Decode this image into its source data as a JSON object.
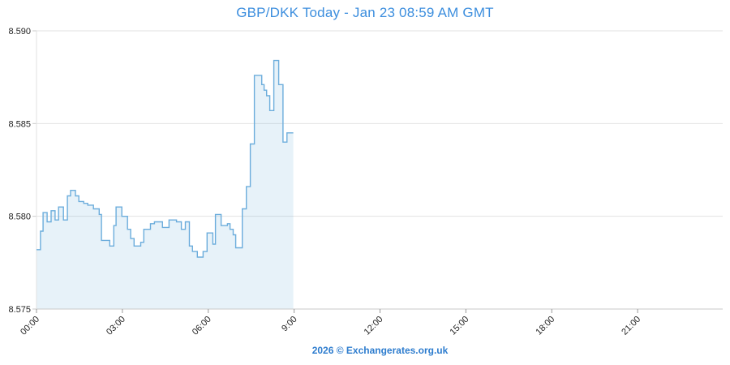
{
  "header": {
    "title": "GBP/DKK Today - Jan 23 08:59 AM GMT"
  },
  "footer": {
    "text": "2026 © Exchangerates.org.uk"
  },
  "colors": {
    "title": "#3c8ede",
    "footer": "#2d7cce",
    "line": "#6caddc",
    "fill": "rgba(108,173,220,0.16)",
    "grid": "#e2e2e2",
    "axis": "#c9c9c9",
    "tick": "#999999",
    "axis_text": "#222222"
  },
  "chart_data": {
    "type": "area",
    "subtype": "step-after",
    "title": "GBP/DKK Today - Jan 23 08:59 AM GMT",
    "xlabel": "",
    "ylabel": "",
    "x_unit": "hours",
    "xlim": [
      0,
      24
    ],
    "ylim": [
      8.575,
      8.59
    ],
    "grid": "horizontal-only",
    "legend": "none",
    "y_ticks": [
      {
        "v": 8.575,
        "label": "8.575"
      },
      {
        "v": 8.58,
        "label": "8.580"
      },
      {
        "v": 8.585,
        "label": "8.585"
      },
      {
        "v": 8.59,
        "label": "8.590"
      }
    ],
    "x_ticks": [
      {
        "h": 0,
        "label": "00:00"
      },
      {
        "h": 3,
        "label": "03:00"
      },
      {
        "h": 6,
        "label": "06:00"
      },
      {
        "h": 9,
        "label": "9:00"
      },
      {
        "h": 12,
        "label": "12:00"
      },
      {
        "h": 15,
        "label": "15:00"
      },
      {
        "h": 18,
        "label": "18:00"
      },
      {
        "h": 21,
        "label": "21:00"
      }
    ],
    "series": [
      {
        "name": "GBP/DKK",
        "step": true,
        "end_t": 8.97,
        "points": [
          [
            0.0,
            8.5782
          ],
          [
            0.14,
            8.5792
          ],
          [
            0.23,
            8.5802
          ],
          [
            0.37,
            8.5797
          ],
          [
            0.51,
            8.5803
          ],
          [
            0.65,
            8.5798
          ],
          [
            0.77,
            8.5805
          ],
          [
            0.94,
            8.5798
          ],
          [
            1.08,
            8.5811
          ],
          [
            1.19,
            8.5814
          ],
          [
            1.36,
            8.5811
          ],
          [
            1.48,
            8.5808
          ],
          [
            1.65,
            8.5807
          ],
          [
            1.79,
            8.5806
          ],
          [
            1.99,
            8.5804
          ],
          [
            2.19,
            8.5801
          ],
          [
            2.27,
            8.5787
          ],
          [
            2.56,
            8.5784
          ],
          [
            2.7,
            8.5795
          ],
          [
            2.78,
            8.5805
          ],
          [
            2.98,
            8.58
          ],
          [
            3.18,
            8.5793
          ],
          [
            3.29,
            8.5788
          ],
          [
            3.41,
            8.5784
          ],
          [
            3.64,
            8.5786
          ],
          [
            3.75,
            8.5793
          ],
          [
            3.98,
            8.5796
          ],
          [
            4.12,
            8.5797
          ],
          [
            4.4,
            8.5794
          ],
          [
            4.63,
            8.5798
          ],
          [
            4.89,
            8.5797
          ],
          [
            5.06,
            8.5793
          ],
          [
            5.2,
            8.5797
          ],
          [
            5.34,
            8.5784
          ],
          [
            5.45,
            8.5781
          ],
          [
            5.62,
            8.5778
          ],
          [
            5.82,
            8.5781
          ],
          [
            5.96,
            8.5791
          ],
          [
            6.16,
            8.5785
          ],
          [
            6.25,
            8.5801
          ],
          [
            6.45,
            8.5795
          ],
          [
            6.67,
            8.5796
          ],
          [
            6.76,
            8.5793
          ],
          [
            6.87,
            8.579
          ],
          [
            6.96,
            8.5783
          ],
          [
            7.19,
            8.5804
          ],
          [
            7.33,
            8.5816
          ],
          [
            7.47,
            8.5839
          ],
          [
            7.61,
            8.5876
          ],
          [
            7.87,
            8.5871
          ],
          [
            7.95,
            8.5868
          ],
          [
            8.04,
            8.5865
          ],
          [
            8.15,
            8.5857
          ],
          [
            8.29,
            8.5884
          ],
          [
            8.46,
            8.5871
          ],
          [
            8.61,
            8.584
          ],
          [
            8.75,
            8.5845
          ]
        ]
      }
    ]
  }
}
